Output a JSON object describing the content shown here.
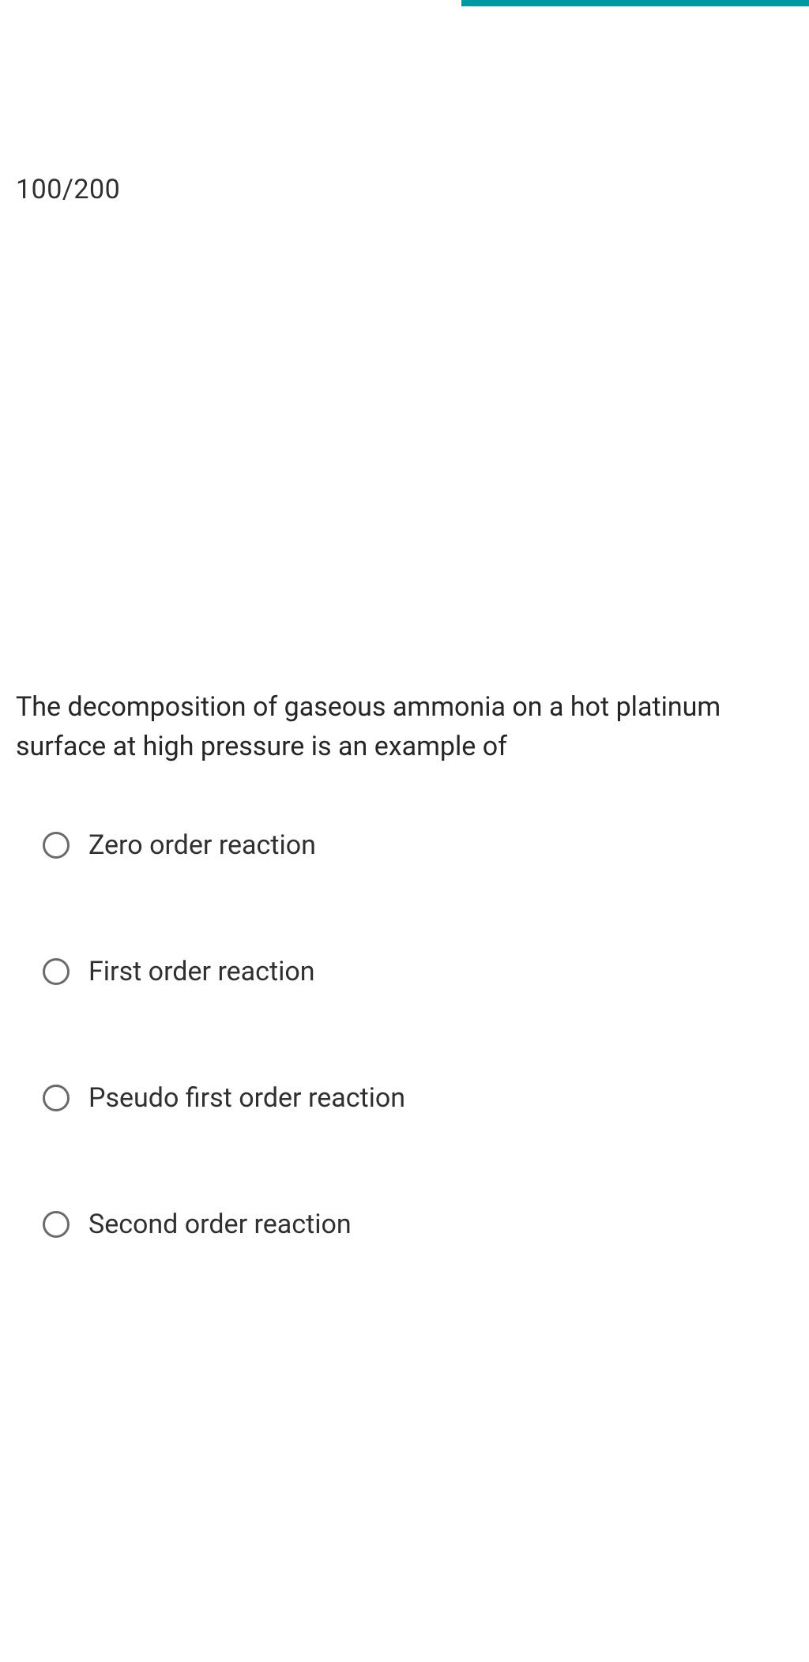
{
  "colors": {
    "top_bar": "#0099a0",
    "text": "#262626",
    "radio_border": "#6a6a6a",
    "background": "#ffffff"
  },
  "progress": {
    "label": "100/200"
  },
  "question": {
    "text": "The decomposition of gaseous ammonia on a hot platinum surface at high pressure is an example of"
  },
  "options": [
    {
      "label": "Zero order reaction",
      "selected": false
    },
    {
      "label": "First order reaction",
      "selected": false
    },
    {
      "label": "Pseudo first order reaction",
      "selected": false
    },
    {
      "label": "Second order reaction",
      "selected": false
    }
  ]
}
